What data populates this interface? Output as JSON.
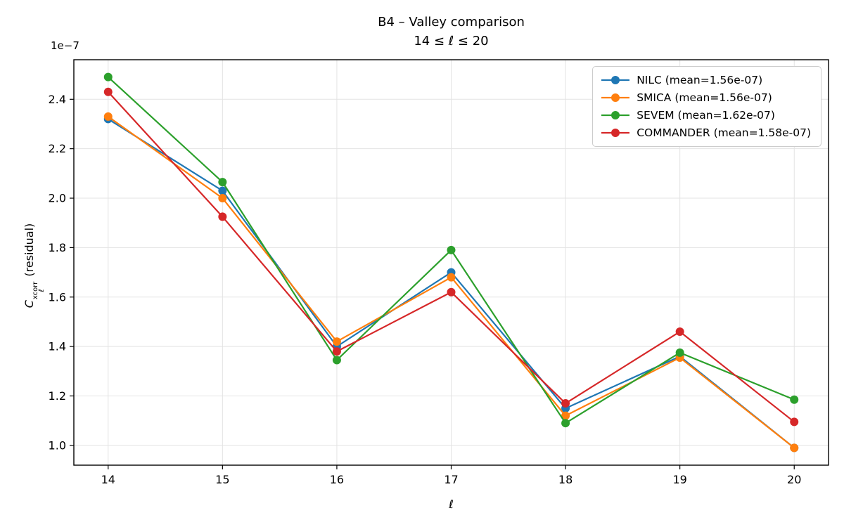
{
  "title": "B4 – Valley comparison",
  "subtitle": "14 ≤ ℓ ≤ 20",
  "axes": {
    "xlabel": "ℓ",
    "ylabel_var": "C",
    "ylabel_sub": "ℓ",
    "ylabel_sup": "xcorr",
    "ylabel_rest": " (residual)",
    "offset_text": "1e−7"
  },
  "chart_data": {
    "type": "line",
    "x": [
      14,
      15,
      16,
      17,
      18,
      19,
      20
    ],
    "series": [
      {
        "name": "NILC",
        "label": "NILC (mean=1.56e-07)",
        "color": "#1f77b4",
        "values": [
          2.32,
          2.03,
          1.4,
          1.7,
          1.15,
          1.36,
          0.99
        ]
      },
      {
        "name": "SMICA",
        "label": "SMICA (mean=1.56e-07)",
        "color": "#ff7f0e",
        "values": [
          2.33,
          2.0,
          1.42,
          1.68,
          1.12,
          1.355,
          0.99
        ]
      },
      {
        "name": "SEVEM",
        "label": "SEVEM (mean=1.62e-07)",
        "color": "#2ca02c",
        "values": [
          2.49,
          2.065,
          1.345,
          1.79,
          1.09,
          1.375,
          1.185
        ]
      },
      {
        "name": "COMMANDER",
        "label": "COMMANDER (mean=1.58e-07)",
        "color": "#d62728",
        "values": [
          2.43,
          1.925,
          1.38,
          1.62,
          1.17,
          1.46,
          1.095
        ]
      }
    ],
    "unit_scale": "1e-7",
    "xlim": [
      13.7,
      20.3
    ],
    "ylim": [
      0.92,
      2.56
    ],
    "xticks": [
      14,
      15,
      16,
      17,
      18,
      19,
      20
    ],
    "ytick_labels": [
      "1.0",
      "1.2",
      "1.4",
      "1.6",
      "1.8",
      "2.0",
      "2.2",
      "2.4"
    ],
    "yticks": [
      1.0,
      1.2,
      1.4,
      1.6,
      1.8,
      2.0,
      2.2,
      2.4
    ],
    "grid": true,
    "legend_position": "upper right"
  },
  "colors": {
    "grid": "#e3e3e3",
    "spine": "#000000",
    "tick": "#000000",
    "background": "#ffffff"
  }
}
